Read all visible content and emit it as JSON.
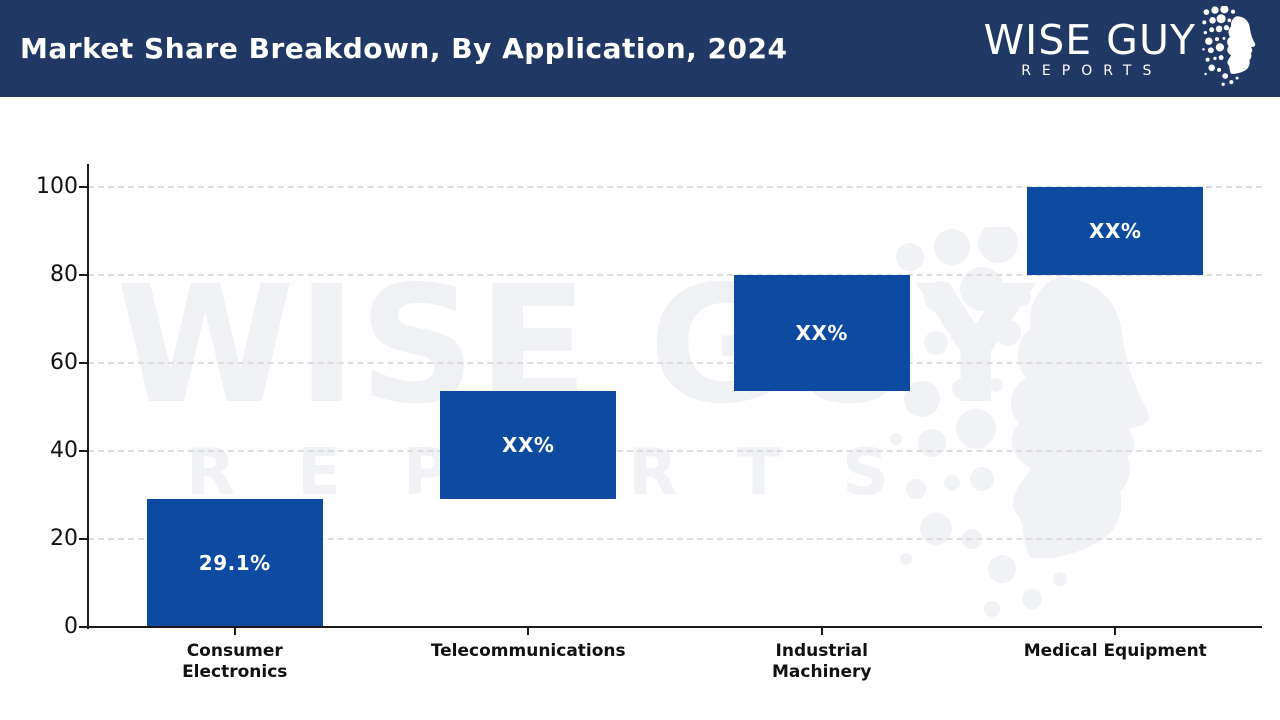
{
  "header": {
    "title": "Market Share Breakdown, By Application, 2024",
    "logo": {
      "line1": "WISE GUY",
      "line2": "REPORTS"
    }
  },
  "watermark": {
    "line1": "WISE GUY",
    "line2": "REPORTS"
  },
  "colors": {
    "header_bg": "#1f3864",
    "bar": "#0d4ba0",
    "bar_label": "#ffffff",
    "gridline": "#dcdcdc",
    "axis": "#1a1a1a",
    "watermark": "#f0f1f4",
    "page_border": "#d9d9d9"
  },
  "chart_data": {
    "type": "bar",
    "variant": "waterfall",
    "title": "Market Share Breakdown, By Application, 2024",
    "categories": [
      [
        "Consumer",
        "Electronics"
      ],
      [
        "Telecommunications"
      ],
      [
        "Industrial",
        "Machinery"
      ],
      [
        "Medical Equipment"
      ]
    ],
    "segments": [
      {
        "name": "Consumer Electronics",
        "start": 0,
        "end": 29.1,
        "label": "29.1%"
      },
      {
        "name": "Telecommunications",
        "start": 29.1,
        "end": 53.6,
        "label": "XX%"
      },
      {
        "name": "Industrial Machinery",
        "start": 53.6,
        "end": 80.0,
        "label": "XX%"
      },
      {
        "name": "Medical Equipment",
        "start": 80.0,
        "end": 100.0,
        "label": "XX%"
      }
    ],
    "yticks": [
      0,
      20,
      40,
      60,
      80,
      100
    ],
    "ylim": [
      0,
      105
    ],
    "xlabel": "",
    "ylabel": "",
    "grid": "horizontal-dashed",
    "legend": "none"
  }
}
